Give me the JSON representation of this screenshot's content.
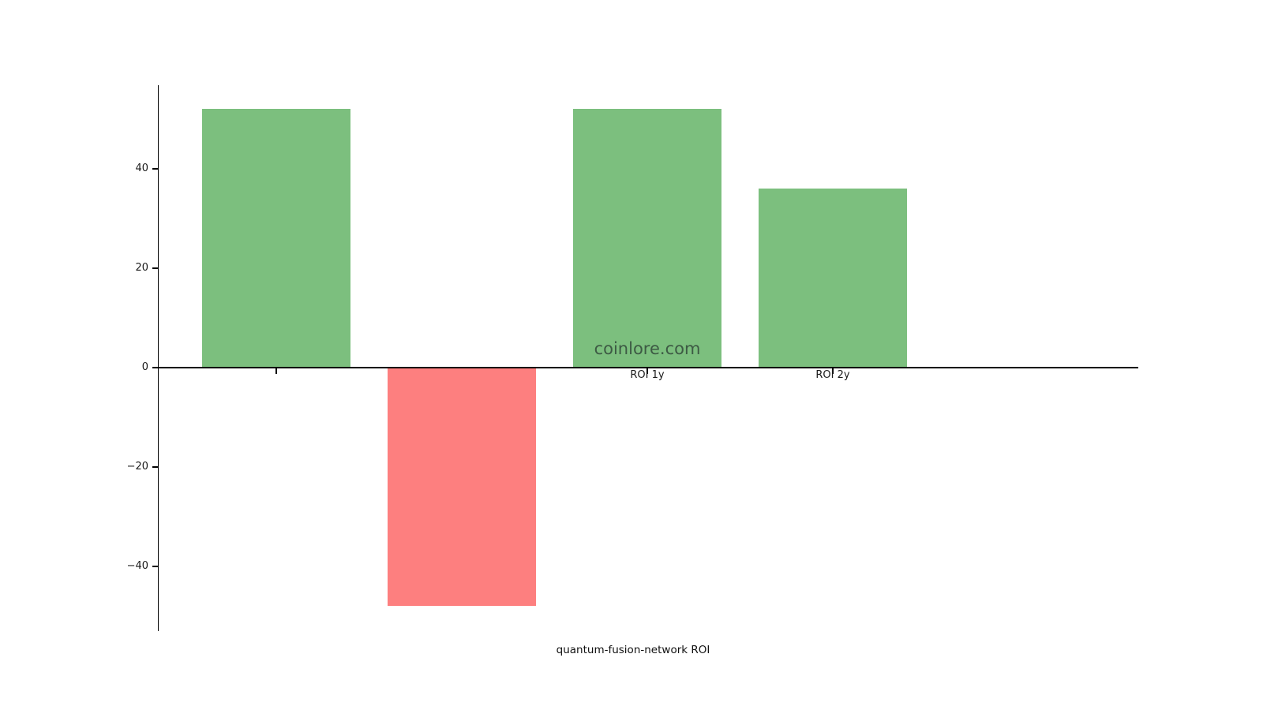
{
  "page": {
    "background": "#ffffff"
  },
  "watermark": {
    "text": "coinlore.com"
  },
  "chart_data": {
    "type": "bar",
    "title": "quantum-fusion-network ROI",
    "categories": [
      "",
      "",
      "ROI 1y",
      "ROI 2y"
    ],
    "values": [
      52,
      -48,
      52,
      36
    ],
    "xlabel": "",
    "ylabel": "",
    "ylim": [
      -53,
      57
    ],
    "yticks": {
      "values": [
        40,
        20,
        0,
        -20,
        -40
      ],
      "labels": [
        "40",
        "20",
        "0",
        "−20",
        "−40"
      ]
    },
    "grid": false,
    "legend": false,
    "colors": {
      "positive": "#7cbf7e",
      "negative": "#fd7f7f",
      "axis": "#000000",
      "tick_text": "#1a1a1a",
      "watermark_text": "#3d5a44"
    }
  }
}
